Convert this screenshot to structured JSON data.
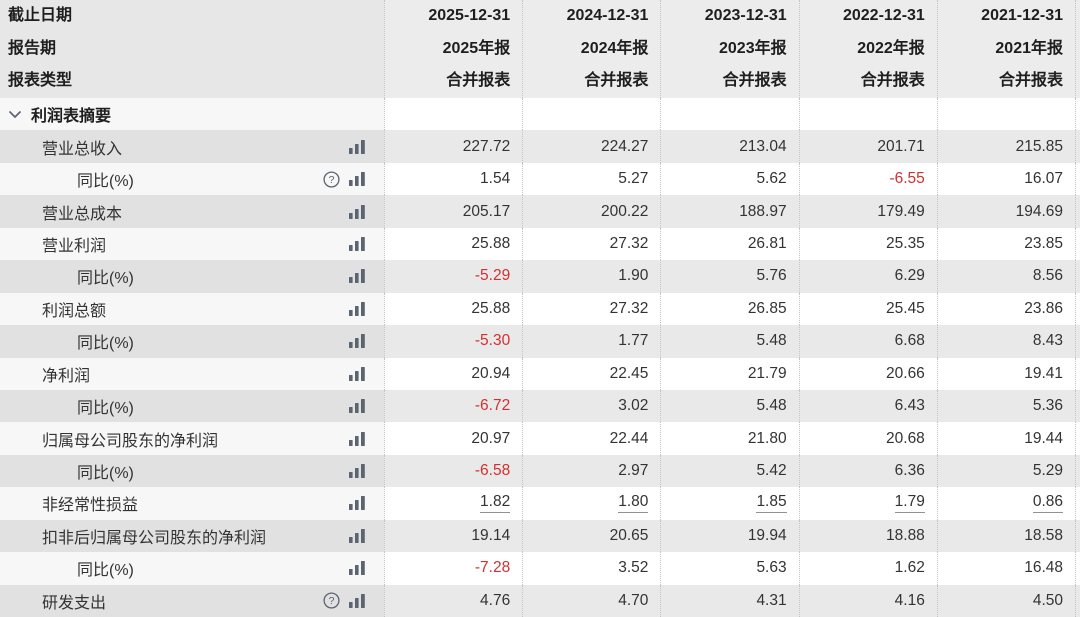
{
  "header": {
    "row_labels": [
      "截止日期",
      "报告期",
      "报表类型"
    ],
    "columns": [
      {
        "end_date": "2025-12-31",
        "report_period": "2025年报",
        "report_type": "合并报表"
      },
      {
        "end_date": "2024-12-31",
        "report_period": "2024年报",
        "report_type": "合并报表"
      },
      {
        "end_date": "2023-12-31",
        "report_period": "2023年报",
        "report_type": "合并报表"
      },
      {
        "end_date": "2022-12-31",
        "report_period": "2022年报",
        "report_type": "合并报表"
      },
      {
        "end_date": "2021-12-31",
        "report_period": "2021年报",
        "report_type": "合并报表"
      }
    ]
  },
  "table": {
    "rows": [
      {
        "type": "section",
        "label": "利润表摘要",
        "icons": [
          "chevron"
        ]
      },
      {
        "type": "data",
        "label": "营业总收入",
        "indent": 1,
        "icons": [
          "bars"
        ],
        "values": [
          "227.72",
          "224.27",
          "213.04",
          "201.71",
          "215.85"
        ]
      },
      {
        "type": "data",
        "label": "同比(%)",
        "indent": 2,
        "icons": [
          "help",
          "bars"
        ],
        "values": [
          "1.54",
          "5.27",
          "5.62",
          "-6.55",
          "16.07"
        ]
      },
      {
        "type": "data",
        "label": "营业总成本",
        "indent": 1,
        "icons": [
          "bars"
        ],
        "values": [
          "205.17",
          "200.22",
          "188.97",
          "179.49",
          "194.69"
        ]
      },
      {
        "type": "data",
        "label": "营业利润",
        "indent": 1,
        "icons": [
          "bars"
        ],
        "values": [
          "25.88",
          "27.32",
          "26.81",
          "25.35",
          "23.85"
        ]
      },
      {
        "type": "data",
        "label": "同比(%)",
        "indent": 2,
        "icons": [
          "bars"
        ],
        "values": [
          "-5.29",
          "1.90",
          "5.76",
          "6.29",
          "8.56"
        ]
      },
      {
        "type": "data",
        "label": "利润总额",
        "indent": 1,
        "icons": [
          "bars"
        ],
        "values": [
          "25.88",
          "27.32",
          "26.85",
          "25.45",
          "23.86"
        ]
      },
      {
        "type": "data",
        "label": "同比(%)",
        "indent": 2,
        "icons": [
          "bars"
        ],
        "values": [
          "-5.30",
          "1.77",
          "5.48",
          "6.68",
          "8.43"
        ]
      },
      {
        "type": "data",
        "label": "净利润",
        "indent": 1,
        "icons": [
          "bars"
        ],
        "values": [
          "20.94",
          "22.45",
          "21.79",
          "20.66",
          "19.41"
        ]
      },
      {
        "type": "data",
        "label": "同比(%)",
        "indent": 2,
        "icons": [
          "bars"
        ],
        "values": [
          "-6.72",
          "3.02",
          "5.48",
          "6.43",
          "5.36"
        ]
      },
      {
        "type": "data",
        "label": "归属母公司股东的净利润",
        "indent": 1,
        "icons": [
          "bars"
        ],
        "values": [
          "20.97",
          "22.44",
          "21.80",
          "20.68",
          "19.44"
        ]
      },
      {
        "type": "data",
        "label": "同比(%)",
        "indent": 2,
        "icons": [
          "bars"
        ],
        "values": [
          "-6.58",
          "2.97",
          "5.42",
          "6.36",
          "5.29"
        ]
      },
      {
        "type": "data",
        "label": "非经常性损益",
        "indent": 1,
        "icons": [
          "bars"
        ],
        "underline": true,
        "values": [
          "1.82",
          "1.80",
          "1.85",
          "1.79",
          "0.86"
        ]
      },
      {
        "type": "data",
        "label": "扣非后归属母公司股东的净利润",
        "indent": 1,
        "icons": [
          "bars"
        ],
        "values": [
          "19.14",
          "20.65",
          "19.94",
          "18.88",
          "18.58"
        ]
      },
      {
        "type": "data",
        "label": "同比(%)",
        "indent": 2,
        "icons": [
          "bars"
        ],
        "values": [
          "-7.28",
          "3.52",
          "5.63",
          "1.62",
          "16.48"
        ]
      },
      {
        "type": "data",
        "label": "研发支出",
        "indent": 1,
        "icons": [
          "help",
          "bars"
        ],
        "values": [
          "4.76",
          "4.70",
          "4.31",
          "4.16",
          "4.50"
        ]
      }
    ]
  },
  "icon_names": {
    "bars": "bar-chart-icon",
    "help": "help-icon",
    "chevron": "chevron-down-icon"
  },
  "colors": {
    "negative_value": "#d32f2f",
    "header_bg": "#ececec",
    "row_alt_bg": "#e9e9e9",
    "row_bg": "#ffffff",
    "text_primary": "#1e1e1e",
    "text_secondary": "#333333",
    "icon_color": "#5b6470",
    "separator": "#c3c6c9"
  }
}
